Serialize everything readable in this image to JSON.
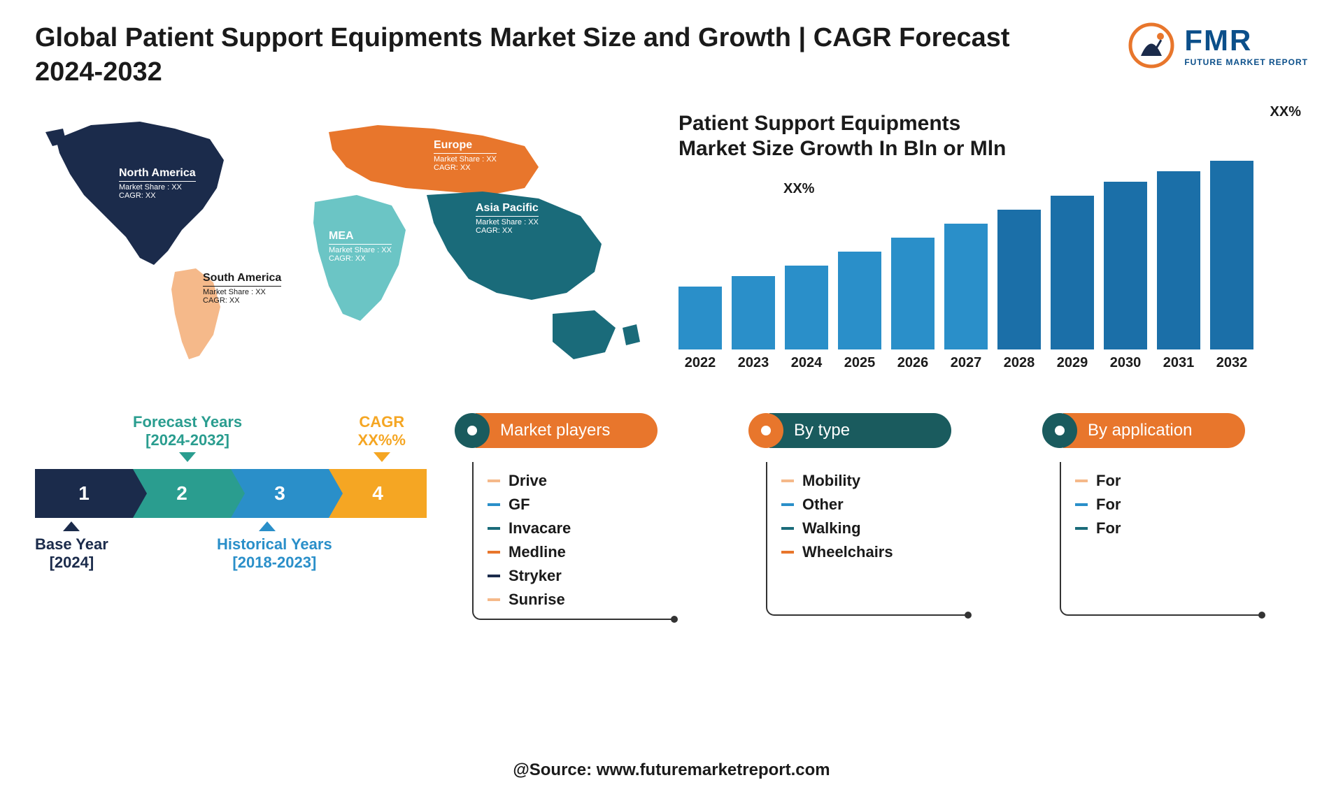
{
  "title": "Global Patient Support Equipments Market Size and Growth | CAGR Forecast 2024-2032",
  "logo": {
    "main": "FMR",
    "sub": "FUTURE MARKET REPORT"
  },
  "colors": {
    "na": "#1b2b4b",
    "sa": "#f5b98a",
    "eu": "#e8762c",
    "mea": "#6bc5c5",
    "ap": "#1a6b7a",
    "bar1": "#2a8fc9",
    "bar2": "#1b6fa8",
    "tl1": "#1b2b4b",
    "tl2": "#2a9d8f",
    "tl3": "#2a8fc9",
    "tl4": "#f5a623",
    "pill_orange": "#e8762c",
    "pill_teal": "#1a5b5e",
    "text": "#1a1a1a"
  },
  "regions": {
    "na": {
      "name": "North America",
      "share": "Market Share : XX",
      "cagr": "CAGR: XX"
    },
    "sa": {
      "name": "South America",
      "share": "Market Share : XX",
      "cagr": "CAGR: XX"
    },
    "eu": {
      "name": "Europe",
      "share": "Market Share : XX",
      "cagr": "CAGR: XX"
    },
    "mea": {
      "name": "MEA",
      "share": "Market Share : XX",
      "cagr": "CAGR: XX"
    },
    "ap": {
      "name": "Asia Pacific",
      "share": "Market Share : XX",
      "cagr": "CAGR: XX"
    }
  },
  "chart": {
    "title": "Patient Support Equipments Market Size Growth In Bln or Mln",
    "years": [
      "2022",
      "2023",
      "2024",
      "2025",
      "2026",
      "2027",
      "2028",
      "2029",
      "2030",
      "2031",
      "2032"
    ],
    "values": [
      90,
      105,
      120,
      140,
      160,
      180,
      200,
      220,
      240,
      255,
      270
    ],
    "annot_2024": "XX%",
    "annot_2032": "XX%",
    "bar_colors": [
      "#2a8fc9",
      "#2a8fc9",
      "#2a8fc9",
      "#2a8fc9",
      "#2a8fc9",
      "#2a8fc9",
      "#1b6fa8",
      "#1b6fa8",
      "#1b6fa8",
      "#1b6fa8",
      "#1b6fa8"
    ]
  },
  "timeline": {
    "base": {
      "label": "Base Year",
      "value": "[2024]"
    },
    "forecast": {
      "label": "Forecast Years",
      "value": "[2024-2032]"
    },
    "historical": {
      "label": "Historical Years",
      "value": "[2018-2023]"
    },
    "cagr": {
      "label": "CAGR",
      "value": "XX%%"
    }
  },
  "info": {
    "players": {
      "title": "Market players",
      "items": [
        "Drive",
        "GF",
        "Invacare",
        "Medline",
        "Stryker",
        "Sunrise"
      ],
      "bullet_colors": [
        "#f5b98a",
        "#2a8fc9",
        "#1a6b7a",
        "#e8762c",
        "#1b2b4b",
        "#f5b98a"
      ]
    },
    "type": {
      "title": "By type",
      "items": [
        "Mobility",
        "Other",
        "Walking",
        "Wheelchairs"
      ],
      "bullet_colors": [
        "#f5b98a",
        "#2a8fc9",
        "#1a6b7a",
        "#e8762c"
      ]
    },
    "app": {
      "title": "By application",
      "items": [
        "For",
        "For",
        "For"
      ],
      "bullet_colors": [
        "#f5b98a",
        "#2a8fc9",
        "#1a6b7a"
      ]
    }
  },
  "source": "@Source: www.futuremarketreport.com"
}
